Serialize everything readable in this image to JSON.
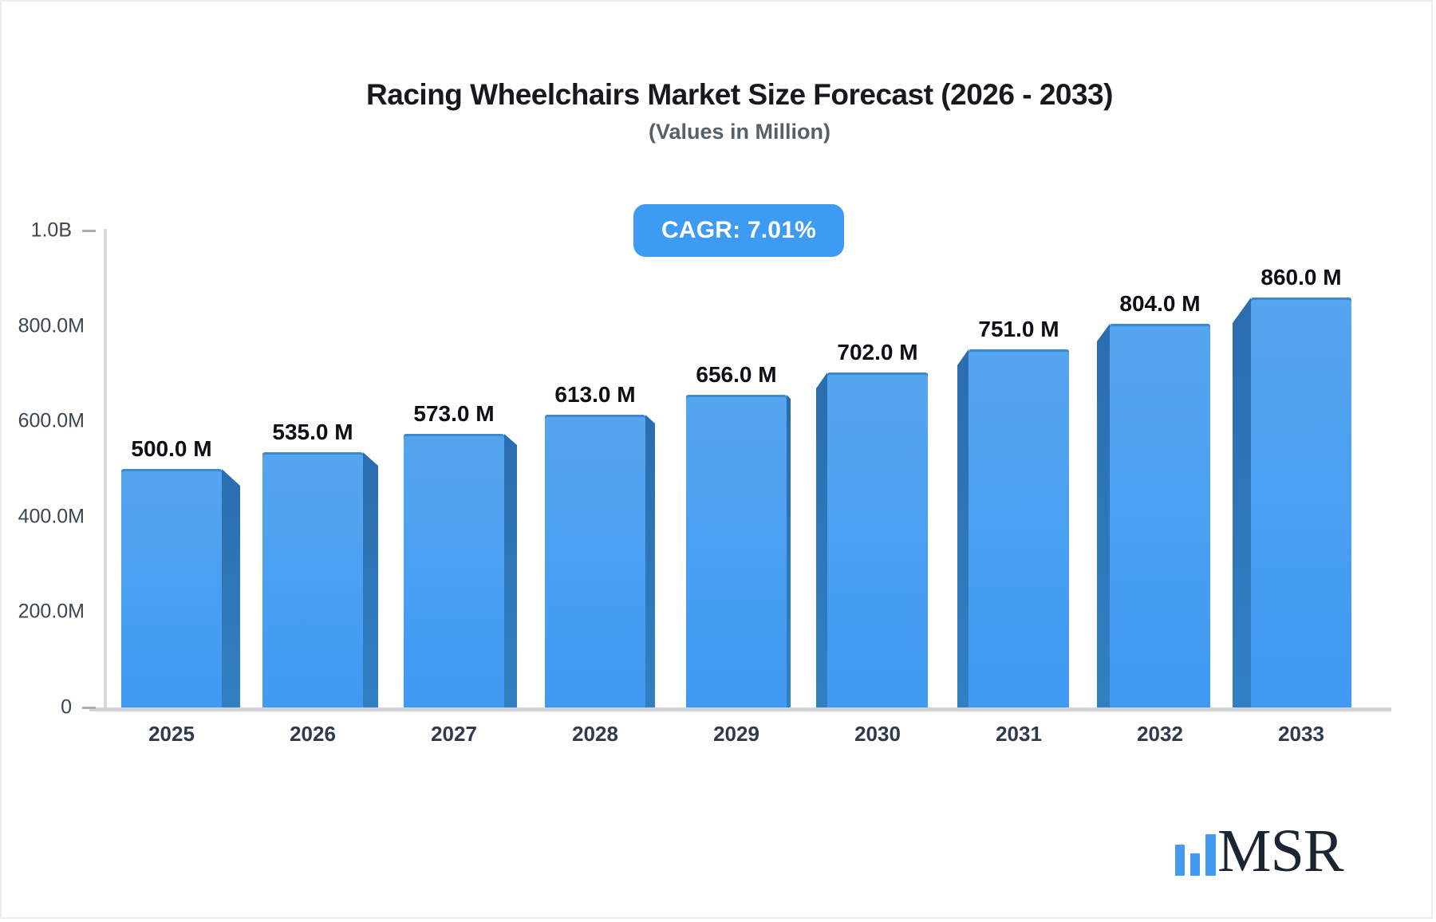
{
  "header": {
    "title": "Racing Wheelchairs Market Size Forecast (2026 - 2033)",
    "subtitle": "(Values in Million)"
  },
  "badge": {
    "label": "CAGR: 7.01%",
    "color": "#3d9bf3"
  },
  "logo": {
    "text": "MSR",
    "mark_color": "#4499f2"
  },
  "colors": {
    "bar_face_top": "#55a5ef",
    "bar_face_bottom": "#3f9af3",
    "bar_side": "#2e77b8",
    "axis": "#d4d6da",
    "value_label": "#0c0f14",
    "year_label": "#2f3a4c"
  },
  "chart_data": {
    "type": "bar",
    "title": "Racing Wheelchairs Market Size Forecast (2026 - 2033)",
    "subtitle": "(Values in Million)",
    "annotation": "CAGR: 7.01%",
    "categories": [
      "2025",
      "2026",
      "2027",
      "2028",
      "2029",
      "2030",
      "2031",
      "2032",
      "2033"
    ],
    "values": [
      500,
      535,
      573,
      613,
      656,
      702,
      751,
      804,
      860
    ],
    "value_labels": [
      "500.0 M",
      "535.0 M",
      "573.0 M",
      "613.0 M",
      "656.0 M",
      "702.0 M",
      "751.0 M",
      "804.0 M",
      "860.0 M"
    ],
    "unit": "Million",
    "xlabel": "",
    "ylabel": "",
    "ylim": [
      0,
      1000
    ],
    "y_ticks": [
      {
        "label": "1.0B",
        "value": 1000,
        "dash": true
      },
      {
        "label": "800.0M",
        "value": 800,
        "dash": false
      },
      {
        "label": "600.0M",
        "value": 600,
        "dash": false
      },
      {
        "label": "400.0M",
        "value": 400,
        "dash": false
      },
      {
        "label": "200.0M",
        "value": 200,
        "dash": false
      },
      {
        "label": "0",
        "value": 0,
        "dash": true
      }
    ],
    "grid": false,
    "legend": false,
    "style": "3d-columns, single blue series, value labels above bars"
  }
}
